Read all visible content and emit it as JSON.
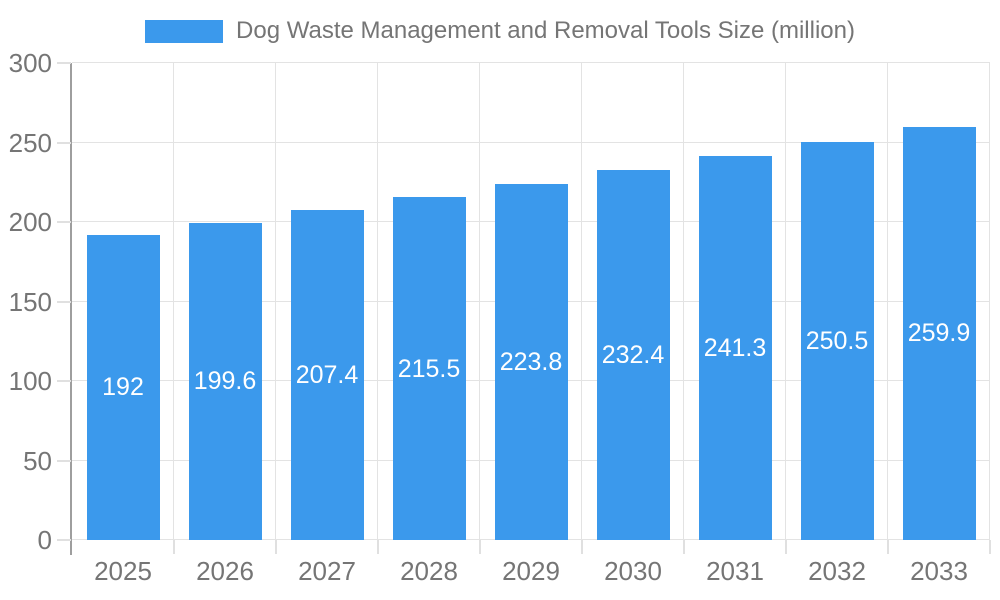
{
  "legend": {
    "label": "Dog Waste Management and Removal Tools Size (million)"
  },
  "chart_data": {
    "type": "bar",
    "title": "Dog Waste Management and Removal Tools Size (million)",
    "categories": [
      "2025",
      "2026",
      "2027",
      "2028",
      "2029",
      "2030",
      "2031",
      "2032",
      "2033"
    ],
    "values": [
      192,
      199.6,
      207.4,
      215.5,
      223.8,
      232.4,
      241.3,
      250.5,
      259.9
    ],
    "value_labels": [
      "192",
      "199.6",
      "207.4",
      "215.5",
      "223.8",
      "232.4",
      "241.3",
      "250.5",
      "259.9"
    ],
    "xlabel": "",
    "ylabel": "",
    "ylim": [
      0,
      300
    ],
    "yticks": [
      0,
      50,
      100,
      150,
      200,
      250,
      300
    ],
    "grid": true,
    "legend_position": "top",
    "colors": {
      "bar_fill": "#3b99ec",
      "value_label_text": "#ffffff",
      "axis_line": "#9e9e9e",
      "gridline": "#e3e3e3",
      "tick_mark": "#e0e0e0",
      "tick_label_text": "#757575",
      "legend_text": "#757575",
      "background": "#ffffff"
    }
  }
}
